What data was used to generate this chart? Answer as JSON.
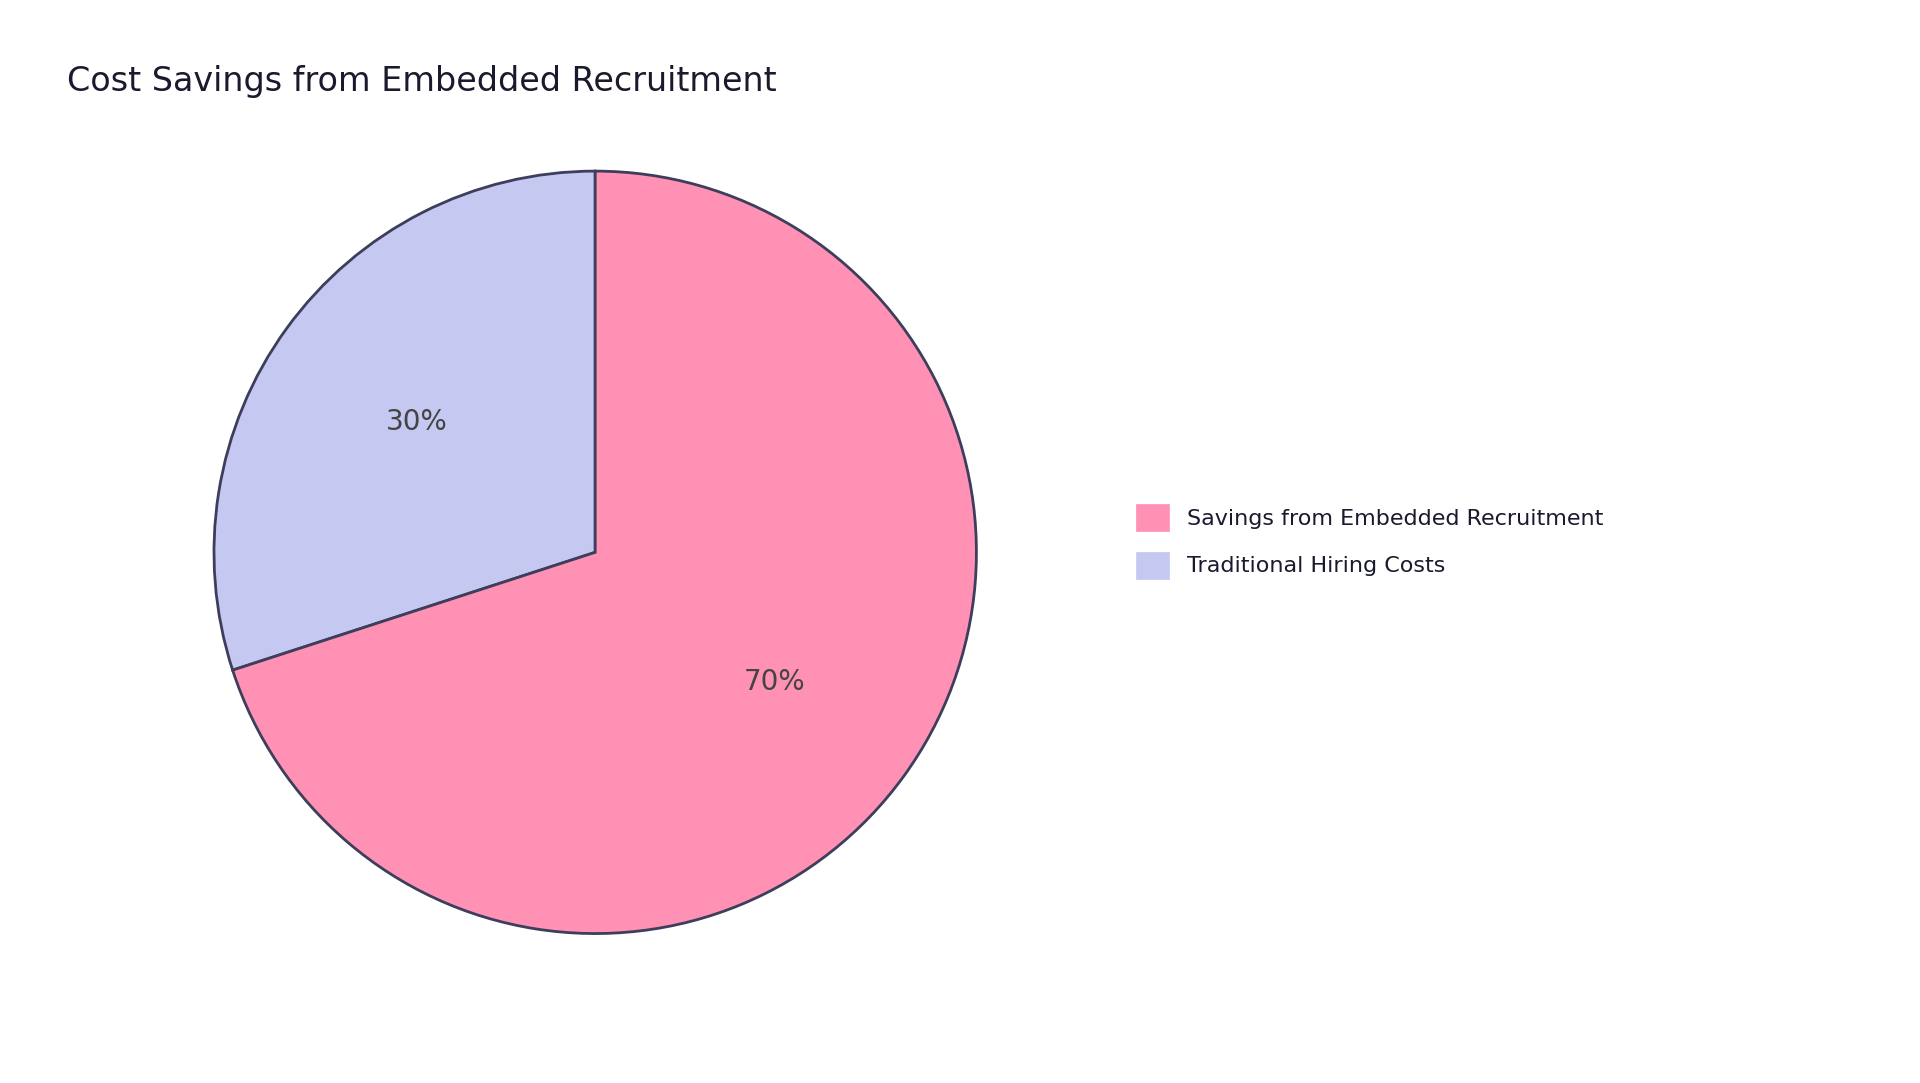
{
  "title": "Cost Savings from Embedded Recruitment",
  "slices": [
    30,
    70
  ],
  "labels": [
    "Traditional Hiring Costs",
    "Savings from Embedded Recruitment"
  ],
  "colors": [
    "#C5C8F0",
    "#FF91B4"
  ],
  "legend_labels": [
    "Savings from Embedded Recruitment",
    "Traditional Hiring Costs"
  ],
  "legend_colors": [
    "#FF91B4",
    "#C5C8F0"
  ],
  "edge_color": "#3d3d5c",
  "edge_width": 2.0,
  "pct_labels": [
    "30%",
    "70%"
  ],
  "pct_fontsize": 20,
  "title_fontsize": 24,
  "legend_fontsize": 16,
  "background_color": "#ffffff",
  "startangle": 90,
  "text_color": "#444444"
}
